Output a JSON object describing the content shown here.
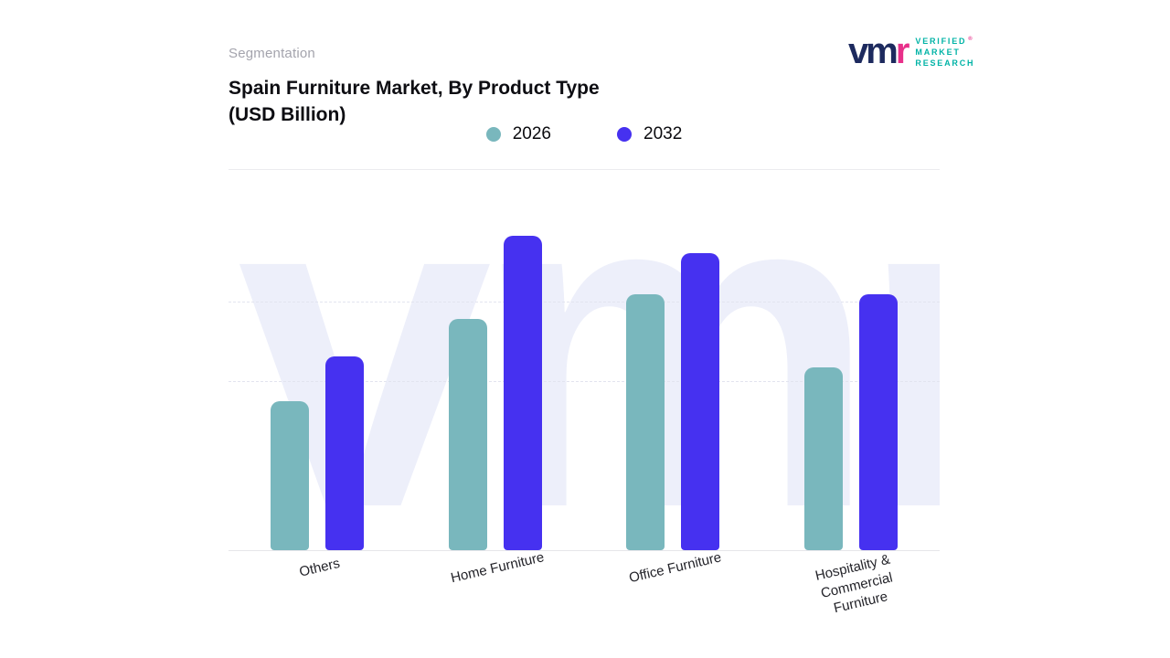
{
  "eyebrow": "Segmentation",
  "title": {
    "line1": "Spain Furniture Market, By Product Type",
    "line2": "(USD Billion)"
  },
  "logo": {
    "mark": "vm",
    "r": "r",
    "registered": "®",
    "lines": [
      "VERIFIED",
      "MARKET",
      "RESEARCH"
    ]
  },
  "legend": [
    {
      "label": "2026",
      "color": "#79b7bd"
    },
    {
      "label": "2032",
      "color": "#4631f0"
    }
  ],
  "chart_data": {
    "type": "bar",
    "title": "Spain Furniture Market, By Product Type (USD Billion)",
    "ylabel": "USD Billion",
    "categories": [
      "Others",
      "Home Furniture",
      "Office Furniture",
      "Hospitality & Commercial Furniture"
    ],
    "category_lines": [
      [
        "Others"
      ],
      [
        "Home Furniture"
      ],
      [
        "Office Furniture"
      ],
      [
        "Hospitality &",
        "Commercial",
        "Furniture"
      ]
    ],
    "series": [
      {
        "name": "2026",
        "color": "#79b7bd",
        "values": [
          4.3,
          6.7,
          7.4,
          5.3
        ]
      },
      {
        "name": "2032",
        "color": "#4631f0",
        "values": [
          5.6,
          9.1,
          8.6,
          7.4
        ]
      }
    ],
    "ylim": [
      0,
      10
    ],
    "grid": "dashed-horizontal",
    "legend_position": "top",
    "watermark": "vmr"
  }
}
